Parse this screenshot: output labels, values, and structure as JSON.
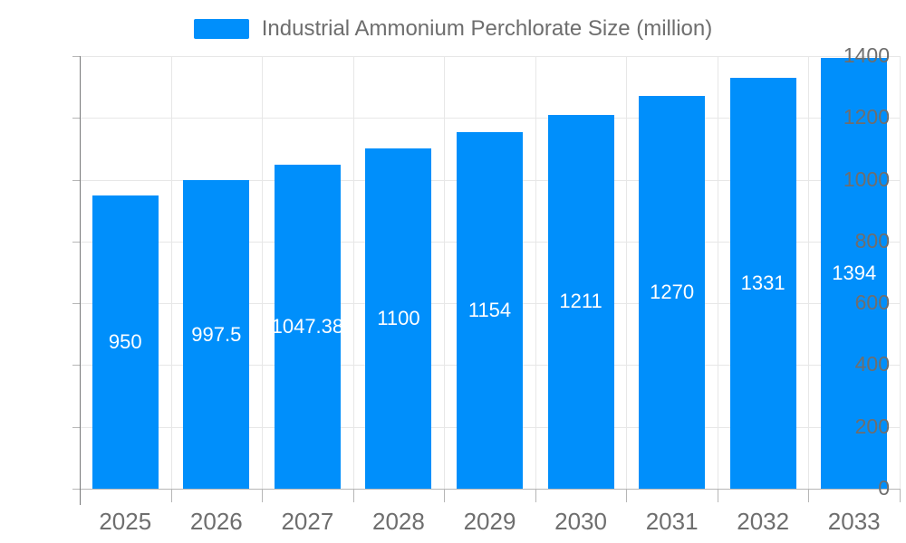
{
  "chart_data": {
    "type": "bar",
    "title": "",
    "legend_label": "Industrial Ammonium Perchlorate Size (million)",
    "legend_position": "top",
    "categories": [
      "2025",
      "2026",
      "2027",
      "2028",
      "2029",
      "2030",
      "2031",
      "2032",
      "2033"
    ],
    "series": [
      {
        "name": "Industrial Ammonium Perchlorate Size (million)",
        "values": [
          950,
          997.5,
          1047.38,
          1100,
          1154,
          1211,
          1270,
          1331,
          1394
        ]
      }
    ],
    "value_labels": [
      "950",
      "997.5",
      "1047.38",
      "1100",
      "1154",
      "1211",
      "1270",
      "1331",
      "1394"
    ],
    "xlabel": "",
    "ylabel": "",
    "ylim": [
      0,
      1400
    ],
    "y_ticks": [
      0,
      200,
      400,
      600,
      800,
      1000,
      1200,
      1400
    ],
    "grid": true,
    "colors": {
      "bar": "#008FFB",
      "data_label_text": "#ffffff",
      "axis_text": "#6e6e6e",
      "legend_text": "#6e6e6e",
      "grid_line": "#e7e7e7",
      "y_axis_line": "#78797a",
      "baseline": "#b6b6b6",
      "tick": "#b6b6b6"
    }
  }
}
